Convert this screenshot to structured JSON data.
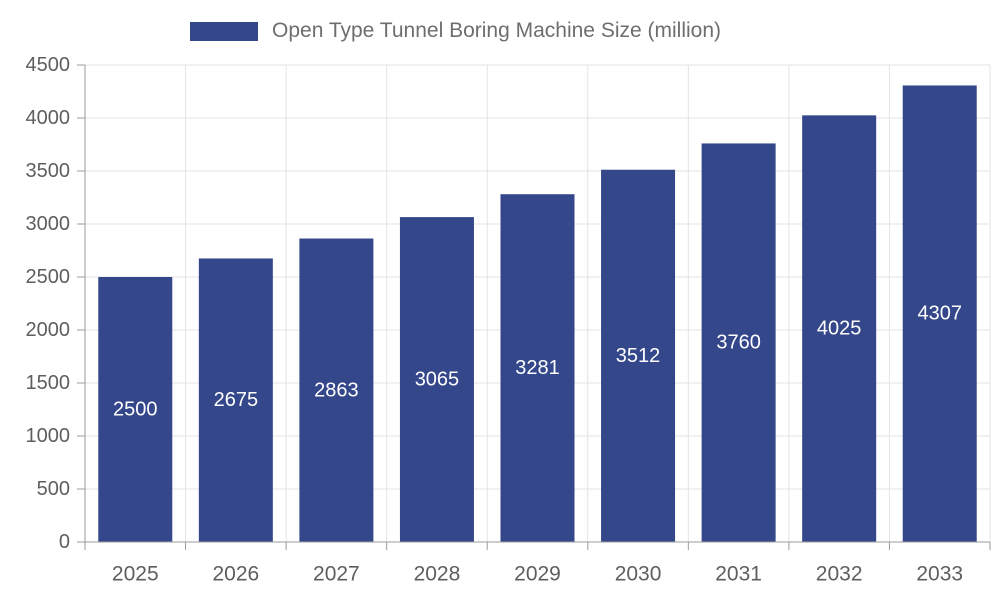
{
  "legend": {
    "label": "Open Type Tunnel Boring Machine Size (million)"
  },
  "chart_data": {
    "type": "bar",
    "title": "Open Type Tunnel Boring Machine Size (million)",
    "categories": [
      "2025",
      "2026",
      "2027",
      "2028",
      "2029",
      "2030",
      "2031",
      "2032",
      "2033"
    ],
    "values": [
      2500,
      2675,
      2863,
      3065,
      3281,
      3512,
      3760,
      4025,
      4307
    ],
    "series": [
      {
        "name": "Open Type Tunnel Boring Machine Size (million)",
        "values": [
          2500,
          2675,
          2863,
          3065,
          3281,
          3512,
          3760,
          4025,
          4307
        ]
      }
    ],
    "xlabel": "",
    "ylabel": "",
    "ylim": [
      0,
      4500
    ],
    "yticks": [
      0,
      500,
      1000,
      1500,
      2000,
      2500,
      3000,
      3500,
      4000,
      4500
    ],
    "grid": true,
    "legend_position": "top",
    "bar_labels_visible": true,
    "colors": {
      "bar": "#34478B",
      "bar_label": "#FFFFFF",
      "axis_text": "#5E5E5E",
      "legend_text": "#6E6E6E",
      "grid_line": "#E3E3E3",
      "axis_line": "#9B9B9B",
      "background": "#FFFFFF"
    }
  }
}
